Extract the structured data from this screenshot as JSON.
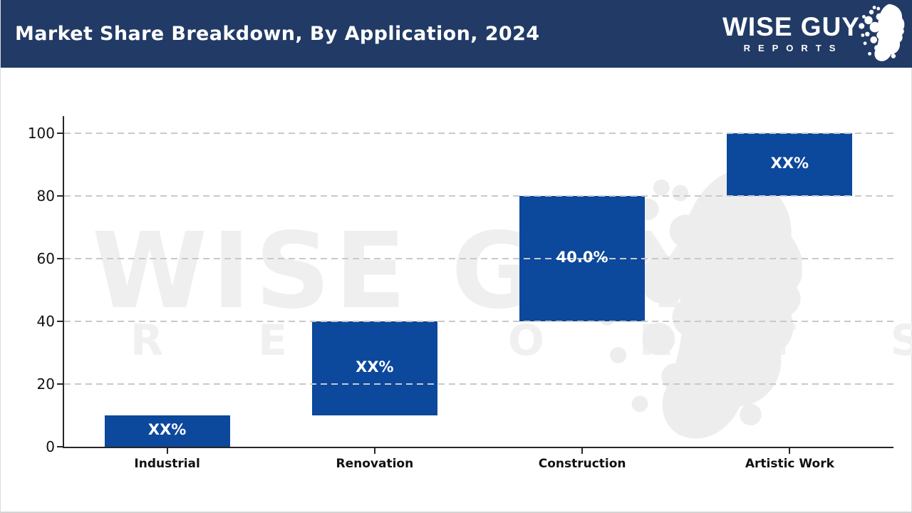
{
  "header": {
    "title": "Market Share Breakdown, By Application, 2024",
    "bg_color": "#213a66",
    "logo": {
      "name": "WISE GUY",
      "sub": "REPORTS"
    }
  },
  "watermark": {
    "line1": "WISE GUY",
    "line2": "R E P O R T S"
  },
  "chart_data": {
    "type": "bar",
    "variant": "waterfall",
    "title": "Market Share Breakdown, By Application, 2024",
    "categories": [
      "Industrial",
      "Renovation",
      "Construction",
      "Artistic Work"
    ],
    "segments": [
      {
        "category": "Industrial",
        "start": 0,
        "end": 10,
        "label": "XX%"
      },
      {
        "category": "Renovation",
        "start": 10,
        "end": 40,
        "label": "XX%"
      },
      {
        "category": "Construction",
        "start": 40,
        "end": 80,
        "label": "40.0%"
      },
      {
        "category": "Artistic Work",
        "start": 80,
        "end": 100,
        "label": "XX%"
      }
    ],
    "xlabel": "",
    "ylabel": "",
    "yticks": [
      0,
      20,
      40,
      60,
      80,
      100
    ],
    "ylim": [
      0,
      105
    ],
    "bar_color": "#0c489c",
    "bar_label_color": "#ffffff",
    "grid": {
      "axis": "y",
      "style": "dashed",
      "color": "#c9c9c9",
      "drawn_over_bars": true
    },
    "legend": "none"
  }
}
